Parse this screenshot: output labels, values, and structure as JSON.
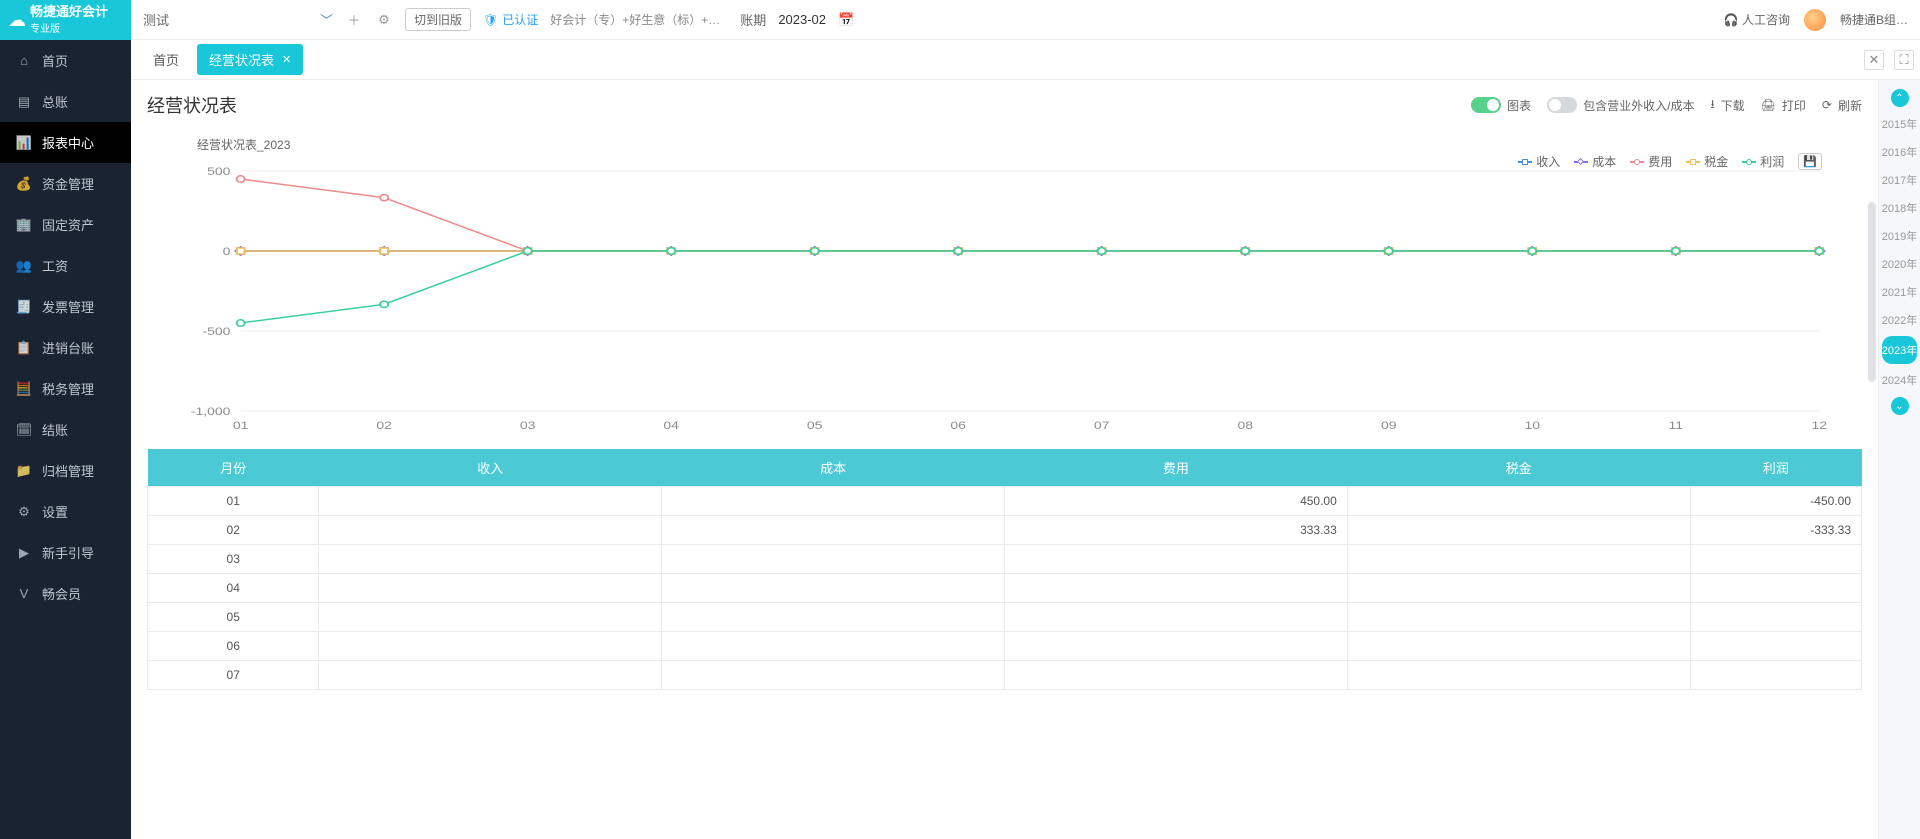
{
  "brand": {
    "name": "畅捷通好会计",
    "edition": "专业版"
  },
  "sidebar": {
    "items": [
      {
        "label": "首页",
        "icon": "⌂"
      },
      {
        "label": "总账",
        "icon": "▤"
      },
      {
        "label": "报表中心",
        "icon": "📊",
        "active": true
      },
      {
        "label": "资金管理",
        "icon": "💰"
      },
      {
        "label": "固定资产",
        "icon": "🏢"
      },
      {
        "label": "工资",
        "icon": "👥"
      },
      {
        "label": "发票管理",
        "icon": "🧾"
      },
      {
        "label": "进销台账",
        "icon": "📋"
      },
      {
        "label": "税务管理",
        "icon": "🧮"
      },
      {
        "label": "结账",
        "icon": "🗓"
      },
      {
        "label": "归档管理",
        "icon": "📁"
      },
      {
        "label": "设置",
        "icon": "⚙"
      },
      {
        "label": "新手引导",
        "icon": "▶"
      },
      {
        "label": "畅会员",
        "icon": "V"
      }
    ]
  },
  "topbar": {
    "org": "测试",
    "switch_old": "切到旧版",
    "certified": "已认证",
    "plan": "好会计（专）+好生意（标）+…",
    "period_label": "账期",
    "period_value": "2023-02",
    "support": "人工咨询",
    "username": "畅捷通B组…"
  },
  "tabs": {
    "home": "首页",
    "active": "经营状况表"
  },
  "page": {
    "title": "经营状况表",
    "toggles": {
      "chart": "图表",
      "extra": "包含营业外收入/成本"
    },
    "actions": {
      "download": "下载",
      "print": "打印",
      "refresh": "刷新"
    }
  },
  "chart": {
    "title": "经营状况表_2023",
    "y_ticks": [
      500,
      0,
      -500,
      -1000
    ],
    "x_labels": [
      "01",
      "02",
      "03",
      "04",
      "05",
      "06",
      "07",
      "08",
      "09",
      "10",
      "11",
      "12"
    ],
    "legend": [
      "收入",
      "成本",
      "费用",
      "税金",
      "利润"
    ],
    "colors": {
      "income": "#4a90e2",
      "cost": "#8a6fe8",
      "expense": "#f08a8a",
      "tax": "#f0c05a",
      "profit": "#3bcf9a",
      "grid": "#eeeeee",
      "axis_text": "#8c8c8c"
    },
    "series": {
      "income": [
        0,
        0,
        0,
        0,
        0,
        0,
        0,
        0,
        0,
        0,
        0,
        0
      ],
      "cost": [
        0,
        0,
        0,
        0,
        0,
        0,
        0,
        0,
        0,
        0,
        0,
        0
      ],
      "expense": [
        450,
        333.33,
        0,
        0,
        0,
        0,
        0,
        0,
        0,
        0,
        0,
        0
      ],
      "tax": [
        0,
        0,
        0,
        0,
        0,
        0,
        0,
        0,
        0,
        0,
        0,
        0
      ],
      "profit": [
        -450,
        -333.33,
        0,
        0,
        0,
        0,
        0,
        0,
        0,
        0,
        0,
        0
      ]
    },
    "y_min": -1000,
    "y_max": 500
  },
  "table": {
    "headers": [
      "月份",
      "收入",
      "成本",
      "费用",
      "税金",
      "利润"
    ],
    "col_widths": [
      "10%",
      "20%",
      "20%",
      "20%",
      "20%",
      "10%"
    ],
    "rows": [
      {
        "month": "01",
        "income": "",
        "cost": "",
        "expense": "450.00",
        "tax": "",
        "profit": "-450.00"
      },
      {
        "month": "02",
        "income": "",
        "cost": "",
        "expense": "333.33",
        "tax": "",
        "profit": "-333.33"
      },
      {
        "month": "03",
        "income": "",
        "cost": "",
        "expense": "",
        "tax": "",
        "profit": ""
      },
      {
        "month": "04",
        "income": "",
        "cost": "",
        "expense": "",
        "tax": "",
        "profit": ""
      },
      {
        "month": "05",
        "income": "",
        "cost": "",
        "expense": "",
        "tax": "",
        "profit": ""
      },
      {
        "month": "06",
        "income": "",
        "cost": "",
        "expense": "",
        "tax": "",
        "profit": ""
      },
      {
        "month": "07",
        "income": "",
        "cost": "",
        "expense": "",
        "tax": "",
        "profit": ""
      }
    ]
  },
  "years": {
    "list": [
      "2015年",
      "2016年",
      "2017年",
      "2018年",
      "2019年",
      "2020年",
      "2021年",
      "2022年",
      "2023年",
      "2024年"
    ],
    "active_index": 8
  }
}
